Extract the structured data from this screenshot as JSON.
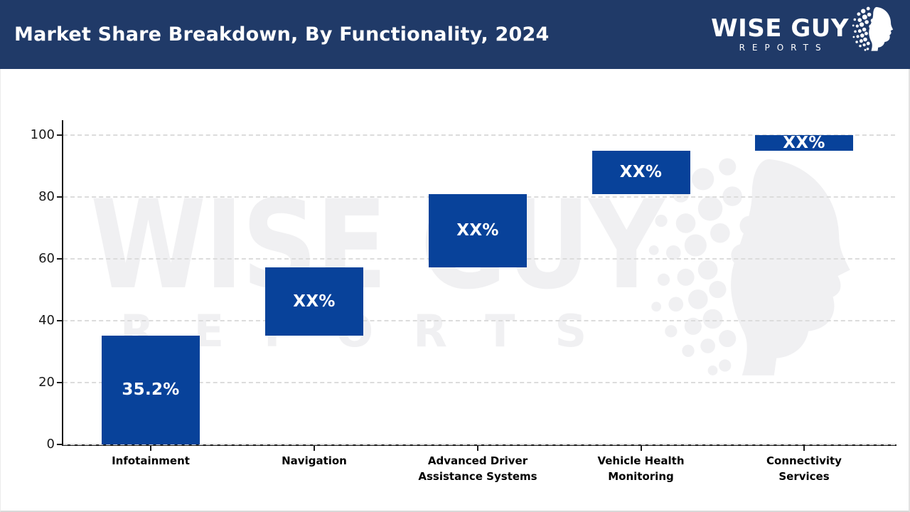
{
  "header": {
    "title": "Market Share Breakdown, By Functionality, 2024",
    "logo": {
      "line1": "WISE GUY",
      "line2": "REPORTS"
    }
  },
  "watermark": {
    "line1": "WISE GUY",
    "line2": "REPORTS"
  },
  "colors": {
    "header_bg": "#203a68",
    "bar": "#08429a",
    "bar_label_text": "#ffffff",
    "watermark": "#f0f0f2",
    "gridline": "#dcdcdc",
    "axis": "#1a1a1a"
  },
  "chart_data": {
    "type": "bar",
    "subtype": "waterfall-cumulative",
    "title": "Market Share Breakdown, By Functionality, 2024",
    "categories": [
      "Infotainment",
      "Navigation",
      "Advanced Driver\nAssistance Systems",
      "Vehicle Health\nMonitoring",
      "Connectivity\nServices"
    ],
    "segments": [
      {
        "category": "Infotainment",
        "start": 0,
        "end": 35.2,
        "label": "35.2%"
      },
      {
        "category": "Navigation",
        "start": 35.2,
        "end": 57.2,
        "label": "XX%"
      },
      {
        "category": "Advanced Driver Assistance Systems",
        "start": 57.2,
        "end": 81.0,
        "label": "XX%"
      },
      {
        "category": "Vehicle Health Monitoring",
        "start": 81.0,
        "end": 95.0,
        "label": "XX%"
      },
      {
        "category": "Connectivity Services",
        "start": 95.0,
        "end": 100.0,
        "label": "XX%"
      }
    ],
    "xlabel": "",
    "ylabel": "",
    "ylim": [
      0,
      100
    ],
    "yticks": [
      0,
      20,
      40,
      60,
      80,
      100
    ],
    "grid": "horizontal-dashed",
    "legend": "none"
  }
}
